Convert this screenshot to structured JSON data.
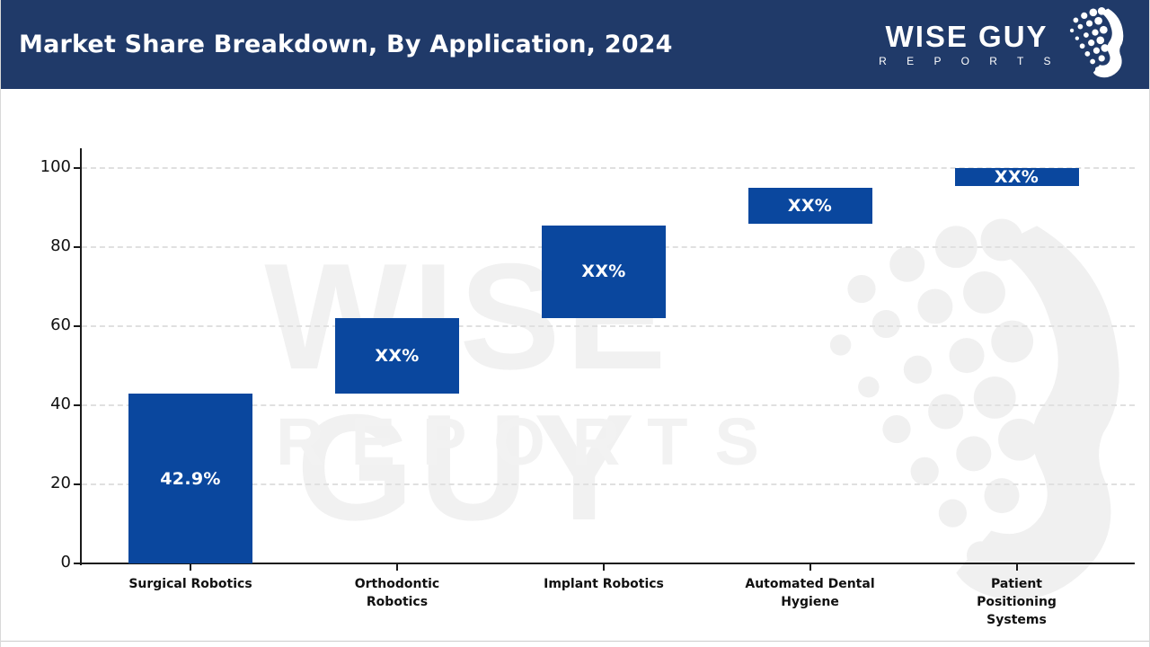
{
  "header": {
    "title": "Market Share Breakdown, By Application, 2024",
    "background": "#203a69",
    "logo": {
      "line1": "WISE GUY",
      "line2": "R E P O R T S"
    }
  },
  "watermark": {
    "line1": "WISE GUY",
    "line2": "REPORTS"
  },
  "chart_data": {
    "type": "bar",
    "subtype": "waterfall",
    "title": "Market Share Breakdown, By Application, 2024",
    "xlabel": "",
    "ylabel": "",
    "categories": [
      "Surgical Robotics",
      "Orthodontic Robotics",
      "Implant Robotics",
      "Automated Dental Hygiene",
      "Patient Positioning Systems"
    ],
    "category_lines": [
      [
        "Surgical Robotics"
      ],
      [
        "Orthodontic",
        "Robotics"
      ],
      [
        "Implant Robotics"
      ],
      [
        "Automated Dental",
        "Hygiene"
      ],
      [
        "Patient",
        "Positioning",
        "Systems"
      ]
    ],
    "segments": [
      {
        "category": "Surgical Robotics",
        "start": 0,
        "end": 42.9,
        "label": "42.9%"
      },
      {
        "category": "Orthodontic Robotics",
        "start": 43,
        "end": 62,
        "label": "XX%"
      },
      {
        "category": "Implant Robotics",
        "start": 62,
        "end": 85.5,
        "label": "XX%"
      },
      {
        "category": "Automated Dental Hygiene",
        "start": 86,
        "end": 95,
        "label": "XX%"
      },
      {
        "category": "Patient Positioning Systems",
        "start": 95.5,
        "end": 100,
        "label": "XX%"
      }
    ],
    "yticks": [
      0,
      20,
      40,
      60,
      80,
      100
    ],
    "ylim": [
      0,
      105
    ],
    "grid": "horizontal-dashed",
    "legend": "none",
    "bar_color": "#0a479e",
    "bar_label_color": "#ffffff",
    "axis_color": "#1a1a1a",
    "grid_color": "#e0e0e0",
    "tick_label_color": "#111111"
  }
}
